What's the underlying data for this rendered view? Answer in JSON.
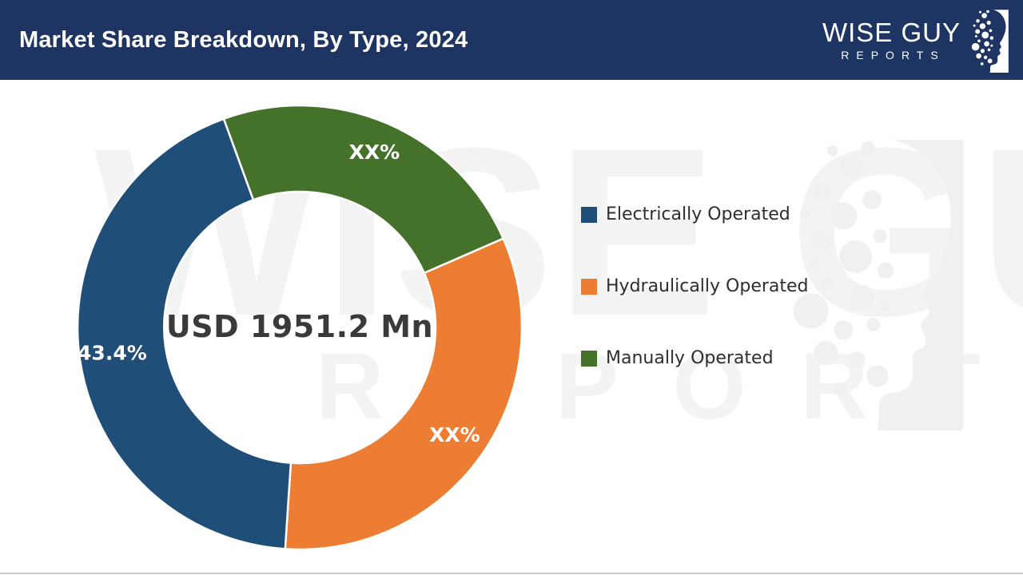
{
  "header": {
    "title": "Market Share Breakdown, By Type, 2024",
    "bg_color": "#1E3563",
    "logo": {
      "line1": "WISE GUY",
      "line2": "REPORTS"
    }
  },
  "watermark": {
    "line1": "WISE GUY",
    "line2": "REPORTS"
  },
  "chart_data": {
    "type": "donut",
    "title": "Market Share Breakdown, By Type, 2024",
    "center_label": "USD 1951.2 Mn",
    "start_angle_deg_clockwise_from_top": -20,
    "donut_hole_ratio": 0.61,
    "slices": [
      {
        "label": "Manually Operated",
        "display_pct": "XX%",
        "pct": 24.0,
        "pct_estimated": true,
        "color": "#45722A"
      },
      {
        "label": "Hydraulically Operated",
        "display_pct": "XX%",
        "pct": 32.6,
        "pct_estimated": true,
        "color": "#EC7D33"
      },
      {
        "label": "Electrically Operated",
        "display_pct": "43.4%",
        "pct": 43.4,
        "pct_estimated": false,
        "color": "#1F4E79"
      }
    ]
  },
  "legend": {
    "position": "right",
    "items": [
      {
        "label": "Electrically Operated",
        "color": "#1F4E79"
      },
      {
        "label": "Hydraulically Operated",
        "color": "#EC7D33"
      },
      {
        "label": "Manually Operated",
        "color": "#45722A"
      }
    ]
  }
}
